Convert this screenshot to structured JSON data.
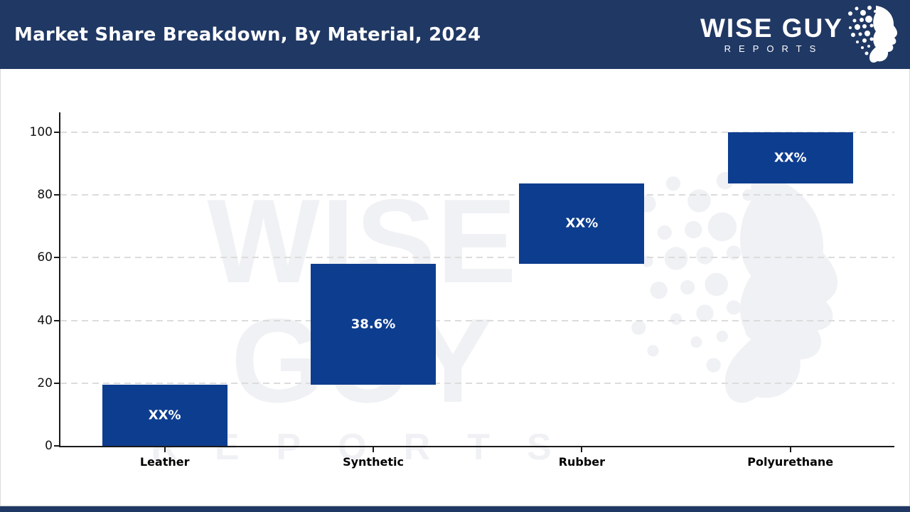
{
  "header": {
    "title": "Market Share Breakdown, By Material, 2024",
    "logo": {
      "line1": "WISE GUY",
      "line2": "REPORTS"
    }
  },
  "watermark": {
    "line1": "WISE GUY",
    "line2": "REPORTS"
  },
  "colors": {
    "header_bg": "#203864",
    "footer_bg": "#203864",
    "bar": "#0d3d8f",
    "bar_label": "#ffffff",
    "axis": "#1a1a1a",
    "gridline": "#dcdcdc",
    "watermark": "#f0f1f4"
  },
  "chart_data": {
    "type": "bar",
    "subtype": "waterfall-floating-bars",
    "title": "Market Share Breakdown, By Material, 2024",
    "categories": [
      "Leather",
      "Synthetic",
      "Rubber",
      "Polyurethane"
    ],
    "series": [
      {
        "name": "Market share (%)",
        "segments": [
          {
            "category": "Leather",
            "start": 0,
            "end": 19.5,
            "label": "XX%"
          },
          {
            "category": "Synthetic",
            "start": 19.5,
            "end": 58.1,
            "label": "38.6%"
          },
          {
            "category": "Rubber",
            "start": 58.1,
            "end": 83.7,
            "label": "XX%"
          },
          {
            "category": "Polyurethane",
            "start": 83.7,
            "end": 100,
            "label": "XX%"
          }
        ]
      }
    ],
    "ylim": [
      0,
      100
    ],
    "yticks": [
      "0",
      "20",
      "40",
      "60",
      "80",
      "100"
    ],
    "xlabel": "",
    "ylabel": "",
    "grid": "horizontal-dashed",
    "legend": "none"
  }
}
